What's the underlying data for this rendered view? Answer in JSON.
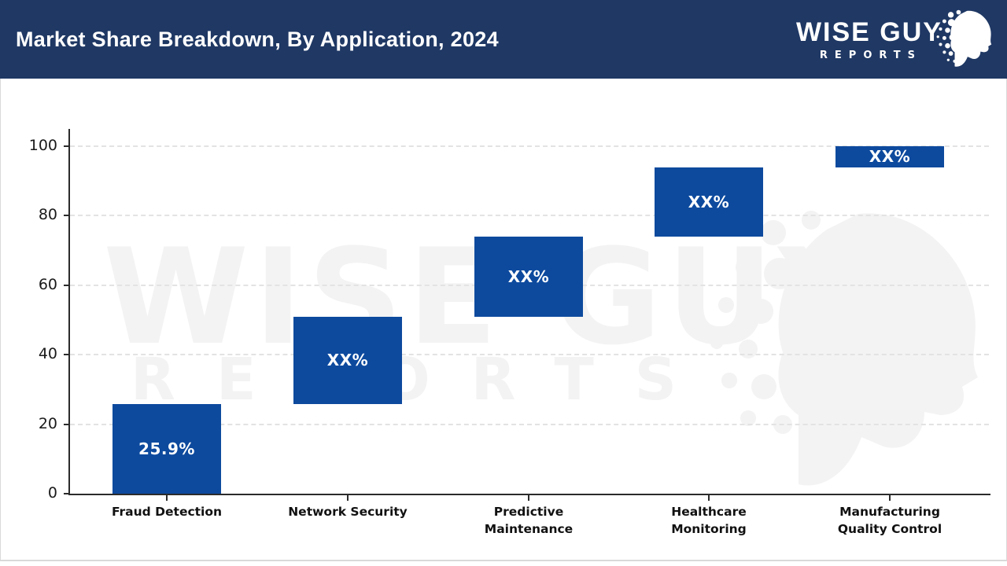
{
  "header": {
    "title": "Market Share Breakdown, By Application, 2024",
    "logo": {
      "line1": "WISE GUY",
      "line2": "REPORTS"
    }
  },
  "watermark": {
    "line1": "WISE GUY",
    "line2": "REPORTS"
  },
  "colors": {
    "header_bg": "#1f3864",
    "bar": "#0d4a9e",
    "bar_label": "#ffffff",
    "axis": "#2b2b2b",
    "grid": "#e3e3e3",
    "watermark": "#f3f3f3"
  },
  "chart_data": {
    "type": "bar",
    "subtype": "waterfall",
    "title": "Market Share Breakdown, By Application, 2024",
    "categories": [
      "Fraud Detection",
      "Network Security",
      "Predictive Maintenance",
      "Healthcare Monitoring",
      "Manufacturing Quality Control"
    ],
    "category_lines": [
      [
        "Fraud Detection"
      ],
      [
        "Network Security"
      ],
      [
        "Predictive",
        "Maintenance"
      ],
      [
        "Healthcare",
        "Monitoring"
      ],
      [
        "Manufacturing",
        "Quality Control"
      ]
    ],
    "segments": [
      {
        "category": "Fraud Detection",
        "start": 0,
        "end": 25.9,
        "label": "25.9%"
      },
      {
        "category": "Network Security",
        "start": 25.9,
        "end": 50.8,
        "label": "XX%"
      },
      {
        "category": "Predictive Maintenance",
        "start": 50.8,
        "end": 73.9,
        "label": "XX%"
      },
      {
        "category": "Healthcare Monitoring",
        "start": 73.9,
        "end": 93.9,
        "label": "XX%"
      },
      {
        "category": "Manufacturing Quality Control",
        "start": 93.9,
        "end": 100,
        "label": "XX%"
      }
    ],
    "yticks": [
      0,
      20,
      40,
      60,
      80,
      100
    ],
    "ylim": [
      0,
      105
    ],
    "xlabel": "",
    "ylabel": "",
    "grid": "horizontal-dashed",
    "legend": "none"
  }
}
